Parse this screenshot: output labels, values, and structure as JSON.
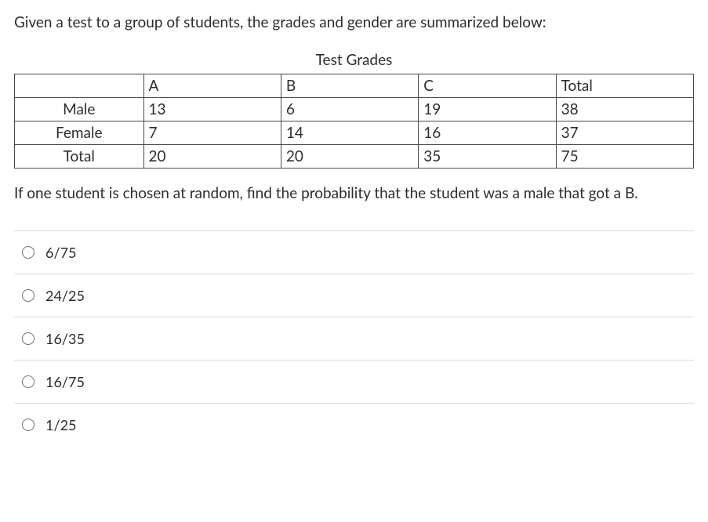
{
  "intro_text": "Given a test to a group of students, the grades and gender are summarized below:",
  "table": {
    "title": "Test Grades",
    "columns": [
      "",
      "A",
      "B",
      "C",
      "Total"
    ],
    "rows": [
      {
        "head": "Male",
        "cells": [
          "13",
          "6",
          "19",
          "38"
        ]
      },
      {
        "head": "Female",
        "cells": [
          "7",
          "14",
          "16",
          "37"
        ]
      },
      {
        "head": "Total",
        "cells": [
          "20",
          "20",
          "35",
          "75"
        ]
      }
    ]
  },
  "followup_text": "If one student is chosen at random, find the probability that the student was a male that got a B.",
  "options": [
    {
      "label": "6/75"
    },
    {
      "label": "24/25"
    },
    {
      "label": "16/35"
    },
    {
      "label": "16/75"
    },
    {
      "label": "1/25"
    }
  ]
}
